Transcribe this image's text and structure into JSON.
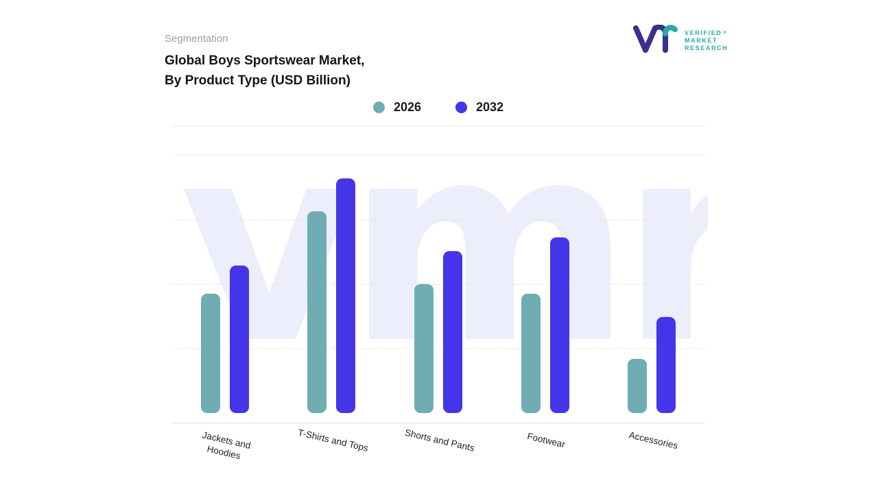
{
  "header": {
    "eyebrow": "Segmentation",
    "title_line1": "Global Boys Sportswear Market,",
    "title_line2": "By Product Type (USD Billion)"
  },
  "logo": {
    "lines": [
      "VERIFIED",
      "MARKET",
      "RESEARCH"
    ],
    "registered_mark": "®",
    "text_color": "#2ba9a4",
    "mark_primary_color": "#39308d",
    "mark_accent_color": "#2ba9a4"
  },
  "chart_data": {
    "type": "bar",
    "title": "Global Boys Sportswear Market, By Product Type (USD Billion)",
    "categories": [
      "Jackets and\nHoodies",
      "T-Shirts and Tops",
      "Shorts and Pants",
      "Footwear",
      "Accessories"
    ],
    "series": [
      {
        "name": "2026",
        "color": "#6fadb3",
        "values": [
          5.1,
          8.6,
          5.5,
          5.1,
          2.3
        ]
      },
      {
        "name": "2032",
        "color": "#4435e8",
        "values": [
          6.3,
          10.0,
          6.9,
          7.5,
          4.1
        ]
      }
    ],
    "ylim": [
      0,
      11
    ],
    "xlabel": "",
    "ylabel": "",
    "grid": "dashed horizontal",
    "legend_position": "top-center",
    "watermark_text": "vmr",
    "watermark_color": "#eceefb"
  }
}
